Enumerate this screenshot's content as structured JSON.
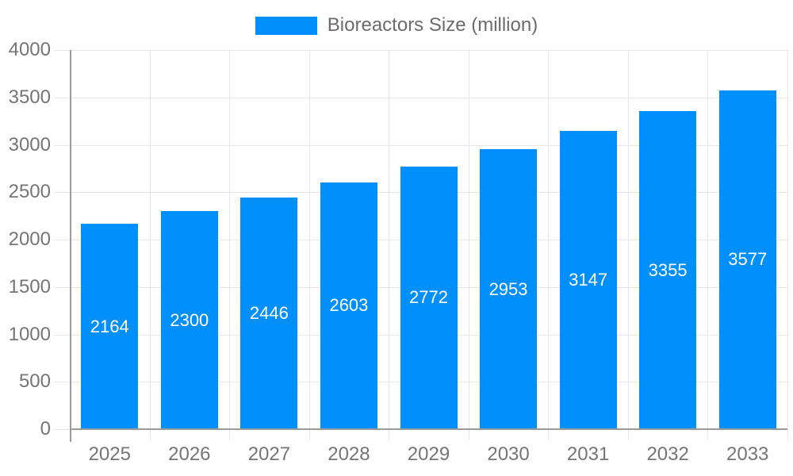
{
  "legend": {
    "label": "Bioreactors Size (million)"
  },
  "chart_data": {
    "type": "bar",
    "title": "Bioreactors Size (million)",
    "categories": [
      "2025",
      "2026",
      "2027",
      "2028",
      "2029",
      "2030",
      "2031",
      "2032",
      "2033"
    ],
    "values": [
      2164,
      2300,
      2446,
      2603,
      2772,
      2953,
      3147,
      3355,
      3577
    ],
    "series": [
      {
        "name": "Bioreactors Size (million)",
        "values": [
          2164,
          2300,
          2446,
          2603,
          2772,
          2953,
          3147,
          3355,
          3577
        ]
      }
    ],
    "xlabel": "",
    "ylabel": "",
    "ylim": [
      0,
      4000
    ],
    "ytick_step": 500,
    "ytick_labels": [
      "0",
      "500",
      "1000",
      "1500",
      "2000",
      "2500",
      "3000",
      "3500",
      "4000"
    ],
    "grid": true,
    "legend_position": "top",
    "value_labels": "inside-center",
    "colors": {
      "bar": "#008FFB",
      "value_label": "#ffffff",
      "axis_line": "#9b9b9b",
      "gridline": "#e7e7e7",
      "tick_label": "#757575",
      "legend_text": "#6b6b6b"
    }
  }
}
